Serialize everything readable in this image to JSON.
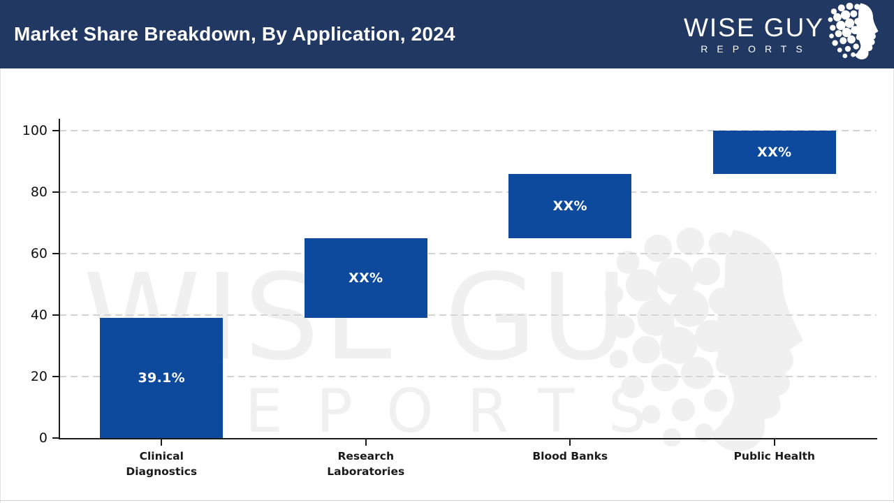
{
  "header": {
    "title": "Market Share Breakdown, By Application, 2024",
    "bg_color": "#213863",
    "logo": {
      "line1": "WISE GUY",
      "line2": "REPORTS"
    }
  },
  "watermark": {
    "line1": "WISE GUY",
    "line2": "REPORTS",
    "color": "#f0f0f1"
  },
  "chart_data": {
    "type": "bar",
    "subtype": "waterfall",
    "title": "Market Share Breakdown, By Application, 2024",
    "categories": [
      "Clinical\nDiagnostics",
      "Research\nLaboratories",
      "Blood Banks",
      "Public Health"
    ],
    "segments": [
      {
        "category": "Clinical\nDiagnostics",
        "start": 0,
        "end": 39.1,
        "label": "39.1%"
      },
      {
        "category": "Research\nLaboratories",
        "start": 39.1,
        "end": 65,
        "label": "XX%"
      },
      {
        "category": "Blood Banks",
        "start": 65,
        "end": 86,
        "label": "XX%"
      },
      {
        "category": "Public Health",
        "start": 86,
        "end": 100,
        "label": "XX%"
      }
    ],
    "y_ticks": [
      0,
      20,
      40,
      60,
      80,
      100
    ],
    "ylim": [
      0,
      100
    ],
    "xlabel": "",
    "ylabel": "",
    "grid": true,
    "gridline_style": "dashed",
    "legend": false,
    "bar_color": "#0d4a9e",
    "bar_label_color": "#ffffff"
  }
}
